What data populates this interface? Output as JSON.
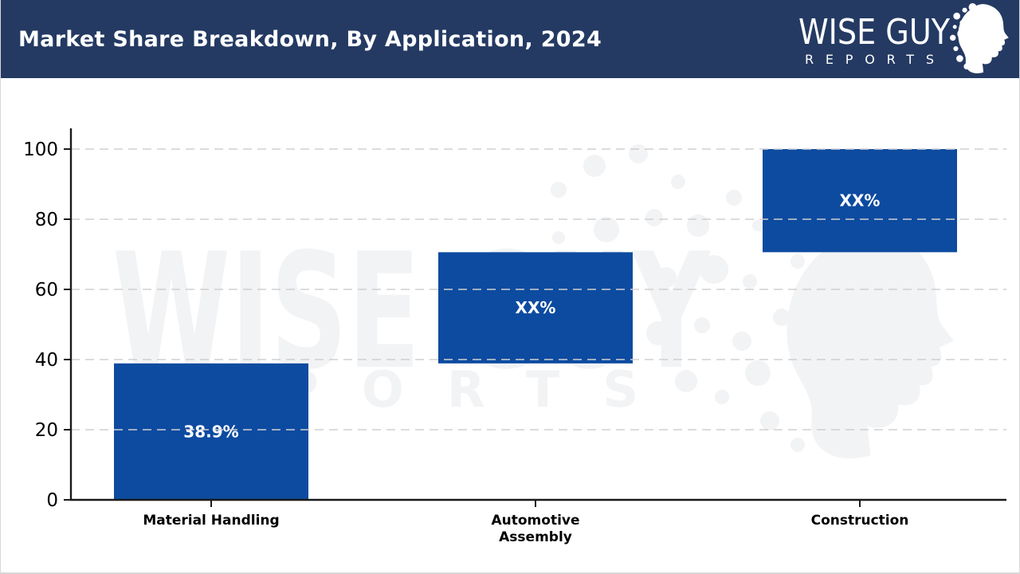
{
  "header": {
    "title": "Market Share Breakdown, By Application, 2024",
    "logo": {
      "primary": "WISE GUY",
      "secondary": "REPORTS"
    }
  },
  "watermark": {
    "primary": "WISE GUY",
    "secondary": "REPORTS"
  },
  "chart_data": {
    "type": "bar",
    "subtype": "floating_segment_bars",
    "title": "Market Share Breakdown, By Application, 2024",
    "categories": [
      "Material Handling",
      "Automotive Assembly",
      "Construction"
    ],
    "category_label_lines": [
      [
        "Material Handling"
      ],
      [
        "Automotive",
        "Assembly"
      ],
      [
        "Construction"
      ]
    ],
    "segments": [
      {
        "category": "Material Handling",
        "start": 0,
        "end": 38.9,
        "label": "38.9%"
      },
      {
        "category": "Automotive Assembly",
        "start": 38.9,
        "end": 70.6,
        "label": "XX%"
      },
      {
        "category": "Construction",
        "start": 70.6,
        "end": 100,
        "label": "XX%"
      }
    ],
    "ylim": [
      0,
      105
    ],
    "yticks": [
      0,
      20,
      40,
      60,
      80,
      100
    ],
    "grid": "horizontal-dashed",
    "legend": "none",
    "colors": {
      "bar": "#0d4ba0",
      "bar_label": "#ffffff",
      "grid": "#d0d0d0",
      "axis": "#1a1a1a",
      "tick_label": "#000000",
      "header_bg": "#243a63",
      "watermark": "#f2f3f5"
    }
  }
}
